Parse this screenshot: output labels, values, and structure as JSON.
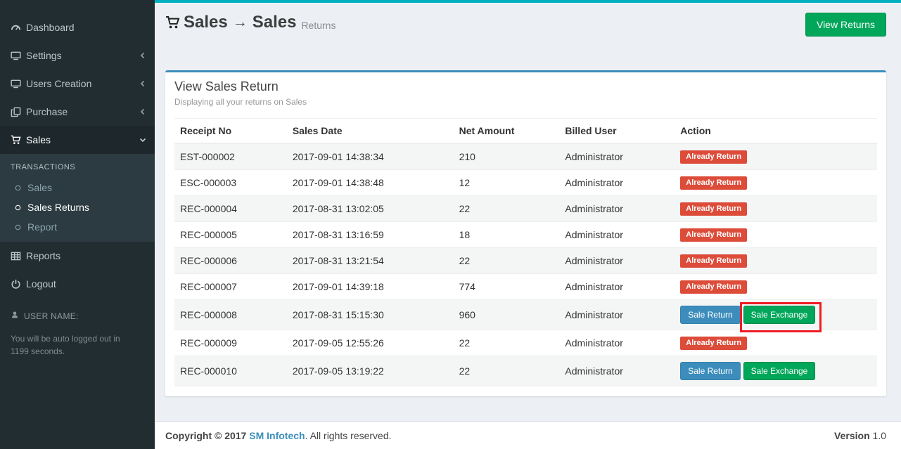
{
  "colors": {
    "top_strip": "#00b1c1",
    "sidebar_bg": "#222d32",
    "sidebar_active_bg": "#1e282c",
    "submenu_bg": "#2c3b41",
    "content_bg": "#ecf0f5",
    "card_accent": "#3c8dbc",
    "btn_primary": "#3c8dbc",
    "btn_success": "#00a65a",
    "badge_danger": "#dd4b39",
    "annotation": "#ee1c25"
  },
  "sidebar": {
    "items": [
      {
        "label": "Dashboard"
      },
      {
        "label": "Settings"
      },
      {
        "label": "Users Creation"
      },
      {
        "label": "Purchase"
      },
      {
        "label": "Sales"
      }
    ],
    "section_header": "TRANSACTIONS",
    "submenu": [
      {
        "label": "Sales"
      },
      {
        "label": "Sales Returns"
      },
      {
        "label": "Report"
      }
    ],
    "reports_label": "Reports",
    "logout_label": "Logout",
    "user_label": "USER NAME:",
    "auto_logout_text": "You will be auto logged out in 1199 seconds."
  },
  "header": {
    "title_primary": "Sales",
    "title_secondary": "Sales",
    "title_suffix": "Returns",
    "view_returns_button": "View Returns"
  },
  "card": {
    "title": "View Sales Return",
    "subtitle": "Displaying all your returns on Sales",
    "table": {
      "columns": [
        "Receipt No",
        "Sales Date",
        "Net Amount",
        "Billed User",
        "Action"
      ],
      "rows": [
        {
          "receipt": "EST-000002",
          "date": "2017-09-01 14:38:34",
          "amount": "210",
          "user": "Administrator",
          "actions": [
            {
              "label": "Already Return",
              "style": "danger"
            }
          ]
        },
        {
          "receipt": "ESC-000003",
          "date": "2017-09-01 14:38:48",
          "amount": "12",
          "user": "Administrator",
          "actions": [
            {
              "label": "Already Return",
              "style": "danger"
            }
          ]
        },
        {
          "receipt": "REC-000004",
          "date": "2017-08-31 13:02:05",
          "amount": "22",
          "user": "Administrator",
          "actions": [
            {
              "label": "Already Return",
              "style": "danger"
            }
          ]
        },
        {
          "receipt": "REC-000005",
          "date": "2017-08-31 13:16:59",
          "amount": "18",
          "user": "Administrator",
          "actions": [
            {
              "label": "Already Return",
              "style": "danger"
            }
          ]
        },
        {
          "receipt": "REC-000006",
          "date": "2017-08-31 13:21:54",
          "amount": "22",
          "user": "Administrator",
          "actions": [
            {
              "label": "Already Return",
              "style": "danger"
            }
          ]
        },
        {
          "receipt": "REC-000007",
          "date": "2017-09-01 14:39:18",
          "amount": "774",
          "user": "Administrator",
          "actions": [
            {
              "label": "Already Return",
              "style": "danger"
            }
          ]
        },
        {
          "receipt": "REC-000008",
          "date": "2017-08-31 15:15:30",
          "amount": "960",
          "user": "Administrator",
          "actions": [
            {
              "label": "Sale Return",
              "style": "primary"
            },
            {
              "label": "Sale Exchange",
              "style": "success",
              "highlighted": true
            }
          ]
        },
        {
          "receipt": "REC-000009",
          "date": "2017-09-05 12:55:26",
          "amount": "22",
          "user": "Administrator",
          "actions": [
            {
              "label": "Already Return",
              "style": "danger"
            }
          ]
        },
        {
          "receipt": "REC-000010",
          "date": "2017-09-05 13:19:22",
          "amount": "22",
          "user": "Administrator",
          "actions": [
            {
              "label": "Sale Return",
              "style": "primary"
            },
            {
              "label": "Sale Exchange",
              "style": "success"
            }
          ]
        }
      ]
    }
  },
  "footer": {
    "copyright_bold": "Copyright © 2017",
    "company_link": "SM Infotech",
    "rights_text": ". All rights reserved.",
    "version_label": "Version",
    "version_value": "1.0"
  }
}
